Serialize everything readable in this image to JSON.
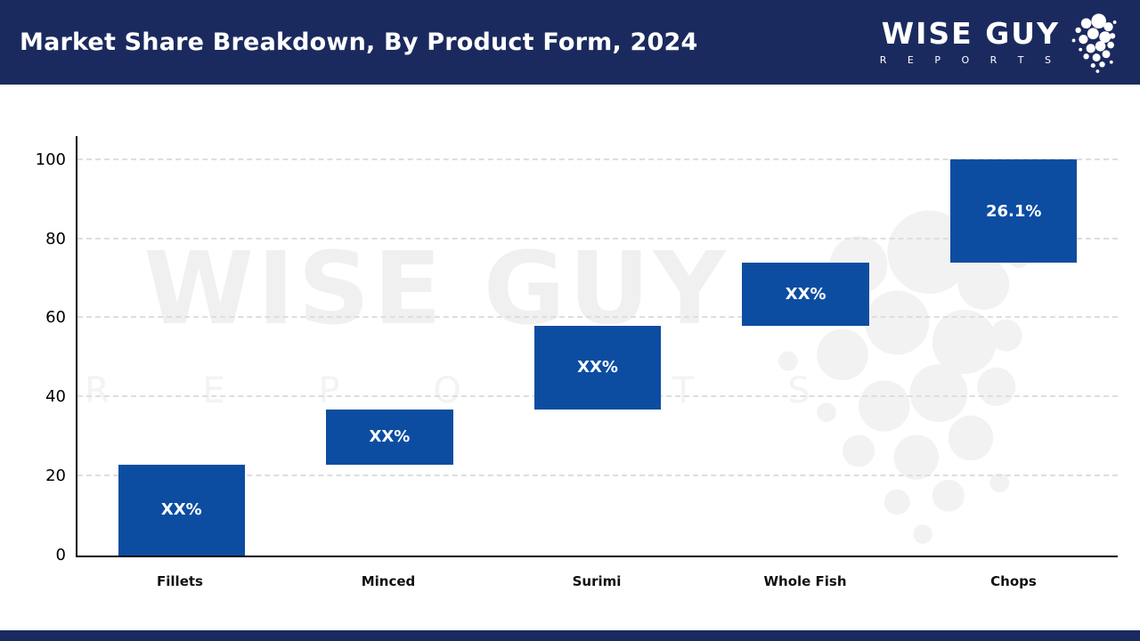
{
  "header": {
    "title": "Market Share Breakdown, By Product Form, 2024",
    "logo": {
      "line1": "WISE GUY",
      "line2": "R E P O R T S"
    }
  },
  "watermark": {
    "line1": "WISE GUY",
    "line2": "R E P O R T S"
  },
  "chart_data": {
    "type": "bar",
    "subtype": "waterfall",
    "title": "Market Share Breakdown, By Product Form, 2024",
    "categories": [
      "Fillets",
      "Minced",
      "Surimi",
      "Whole Fish",
      "Chops"
    ],
    "segments": [
      {
        "category": "Fillets",
        "start": 0,
        "end": 23,
        "value_label": "XX%"
      },
      {
        "category": "Minced",
        "start": 23,
        "end": 37,
        "value_label": "XX%"
      },
      {
        "category": "Surimi",
        "start": 37,
        "end": 58,
        "value_label": "XX%"
      },
      {
        "category": "Whole Fish",
        "start": 58,
        "end": 74,
        "value_label": "XX%"
      },
      {
        "category": "Chops",
        "start": 74,
        "end": 100.1,
        "value_label": "26.1%",
        "value": 26.1
      }
    ],
    "ylim": [
      0,
      100
    ],
    "yticks": [
      0,
      20,
      40,
      60,
      80,
      100
    ],
    "grid": "horizontal-dashed",
    "legend": "none",
    "colors": {
      "bar": "#0d4da1",
      "bar_label": "#ffffff",
      "header_bg": "#1b2a5e",
      "axis": "#000000",
      "gridline": "#dedede",
      "watermark": "#f0f0f0"
    }
  }
}
